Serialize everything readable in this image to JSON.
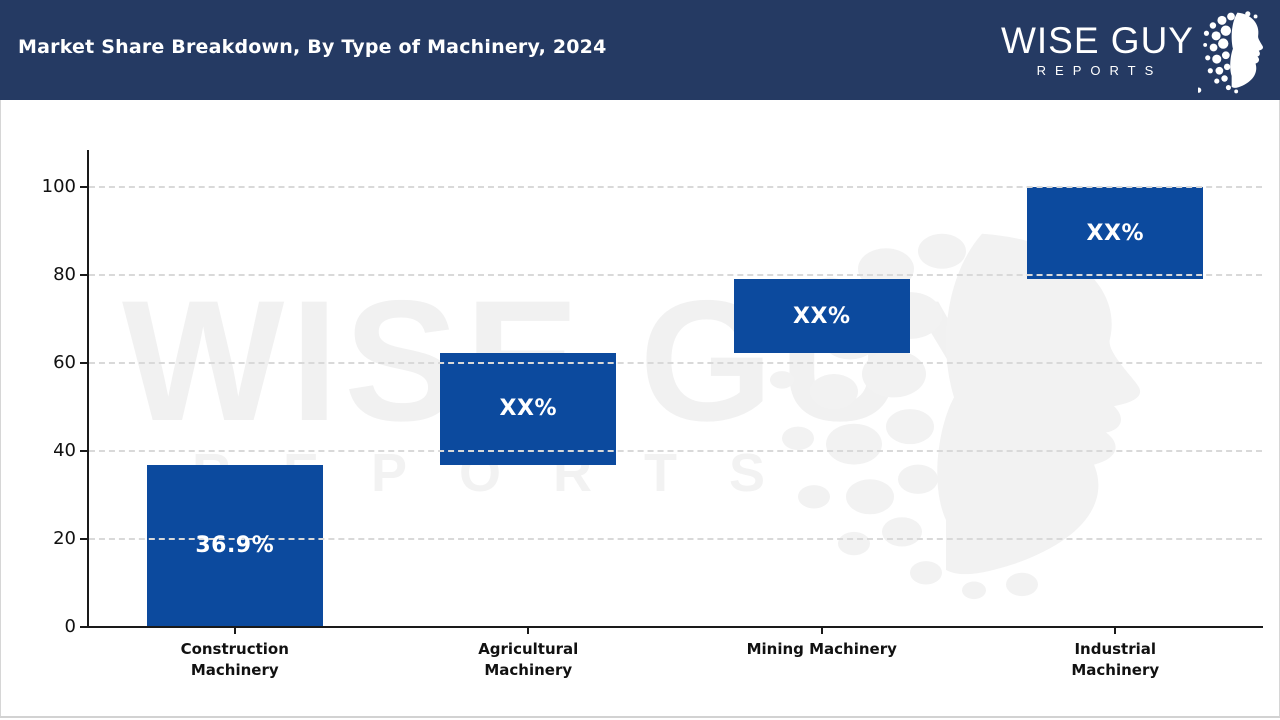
{
  "header": {
    "title": "Market Share Breakdown, By Type of Machinery, 2024",
    "logo": {
      "line1": "WISE GUY",
      "line2": "REPORTS"
    }
  },
  "watermark": {
    "line1": "WISE GUY",
    "line2": "REPORTS"
  },
  "colors": {
    "header_bg": "#253a63",
    "bar": "#0c4a9e",
    "grid": "#d9d9d9",
    "axis": "#1a1a1a",
    "bar_label_text": "#ffffff",
    "watermark": "#f1f1f1"
  },
  "chart_data": {
    "type": "bar",
    "subtype": "waterfall",
    "title": "Market Share Breakdown, By Type of Machinery, 2024",
    "categories": [
      "Construction\nMachinery",
      "Agricultural\nMachinery",
      "Mining Machinery",
      "Industrial\nMachinery"
    ],
    "segments": [
      [
        0,
        36.9
      ],
      [
        36.9,
        62.3
      ],
      [
        62.3,
        79.0
      ],
      [
        79.0,
        100
      ]
    ],
    "bar_labels": [
      "36.9%",
      "XX%",
      "XX%",
      "XX%"
    ],
    "yticks": [
      0,
      20,
      40,
      60,
      80,
      100
    ],
    "ylim": [
      0,
      109
    ],
    "xlabel": "",
    "ylabel": "",
    "grid": "horizontal-dashed",
    "legend": "none",
    "bar_color": "#0c4a9e"
  }
}
